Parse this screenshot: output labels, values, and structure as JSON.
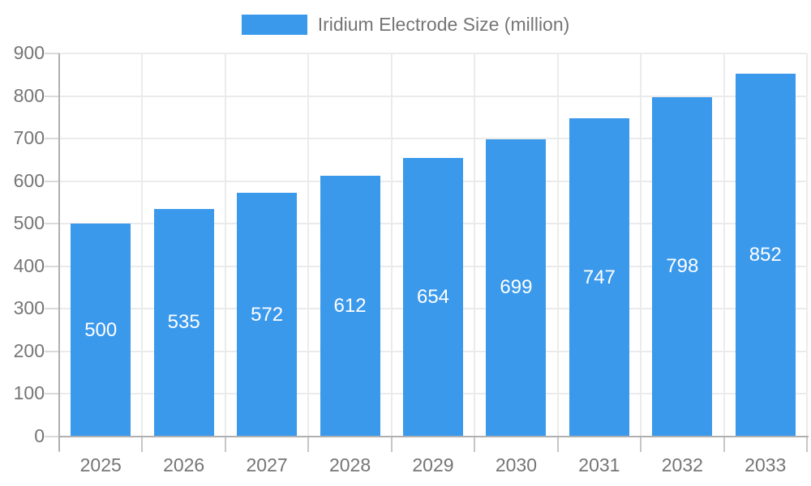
{
  "chart_data": {
    "type": "bar",
    "title": "Iridium Electrode Size (million)",
    "categories": [
      "2025",
      "2026",
      "2027",
      "2028",
      "2029",
      "2030",
      "2031",
      "2032",
      "2033"
    ],
    "values": [
      500,
      535,
      572,
      612,
      654,
      699,
      747,
      798,
      852
    ],
    "series": [
      {
        "name": "Iridium Electrode Size (million)",
        "values": [
          500,
          535,
          572,
          612,
          654,
          699,
          747,
          798,
          852
        ]
      }
    ],
    "xlabel": "",
    "ylabel": "",
    "ylim": [
      0,
      900
    ],
    "yticks": [
      0,
      100,
      200,
      300,
      400,
      500,
      600,
      700,
      800,
      900
    ],
    "grid": true,
    "legend_position": "top-center",
    "value_label_position": "inside-center",
    "colors": {
      "bar": "#3B99EC",
      "value_label": "#FFFFFF",
      "axis_text": "#757575",
      "gridline": "#EBEBEB",
      "axis_line": "#B0B0B0",
      "y_tick": "#DADADA",
      "x_tick": "#C6C6C6",
      "background": "#FFFFFF"
    }
  }
}
